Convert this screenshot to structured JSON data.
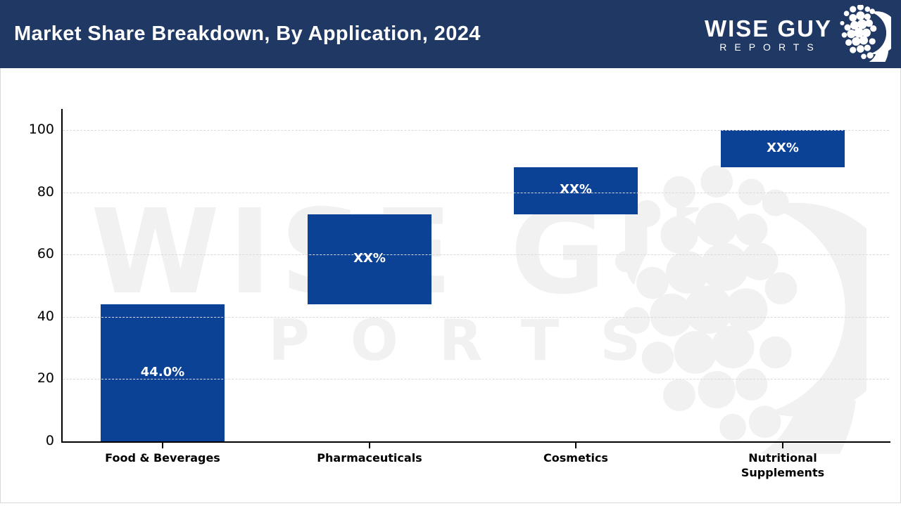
{
  "header": {
    "title": "Market Share Breakdown, By Application, 2024",
    "logo_line1": "WISE GUY",
    "logo_line2": "REPORTS"
  },
  "watermark": {
    "line1": "WISE GUY",
    "line2": "REPORTS"
  },
  "colors": {
    "header_bg": "#203864",
    "bar": "#0c4296",
    "bar_label": "#ffffff",
    "grid": "#d9d9d9",
    "axis": "#000000",
    "watermark": "#f1f1f2",
    "border": "#d9d9d9"
  },
  "chart_data": {
    "type": "bar",
    "variant": "waterfall",
    "title": "Market Share Breakdown, By Application, 2024",
    "xlabel": "",
    "ylabel": "",
    "ylim": [
      0,
      100
    ],
    "yticks": [
      0,
      20,
      40,
      60,
      80,
      100
    ],
    "grid": "horizontal-dashed",
    "legend": "none",
    "categories": [
      "Food & Beverages",
      "Pharmaceuticals",
      "Cosmetics",
      "Nutritional Supplements"
    ],
    "category_label_lines": [
      [
        "Food & Beverages"
      ],
      [
        "Pharmaceuticals"
      ],
      [
        "Cosmetics"
      ],
      [
        "Nutritional",
        "Supplements"
      ]
    ],
    "segments": [
      {
        "category": "Food & Beverages",
        "start": 0,
        "end": 44,
        "label": "44.0%"
      },
      {
        "category": "Pharmaceuticals",
        "start": 44,
        "end": 73,
        "label": "XX%"
      },
      {
        "category": "Cosmetics",
        "start": 73,
        "end": 88,
        "label": "XX%"
      },
      {
        "category": "Nutritional Supplements",
        "start": 88,
        "end": 100,
        "label": "XX%"
      }
    ]
  }
}
